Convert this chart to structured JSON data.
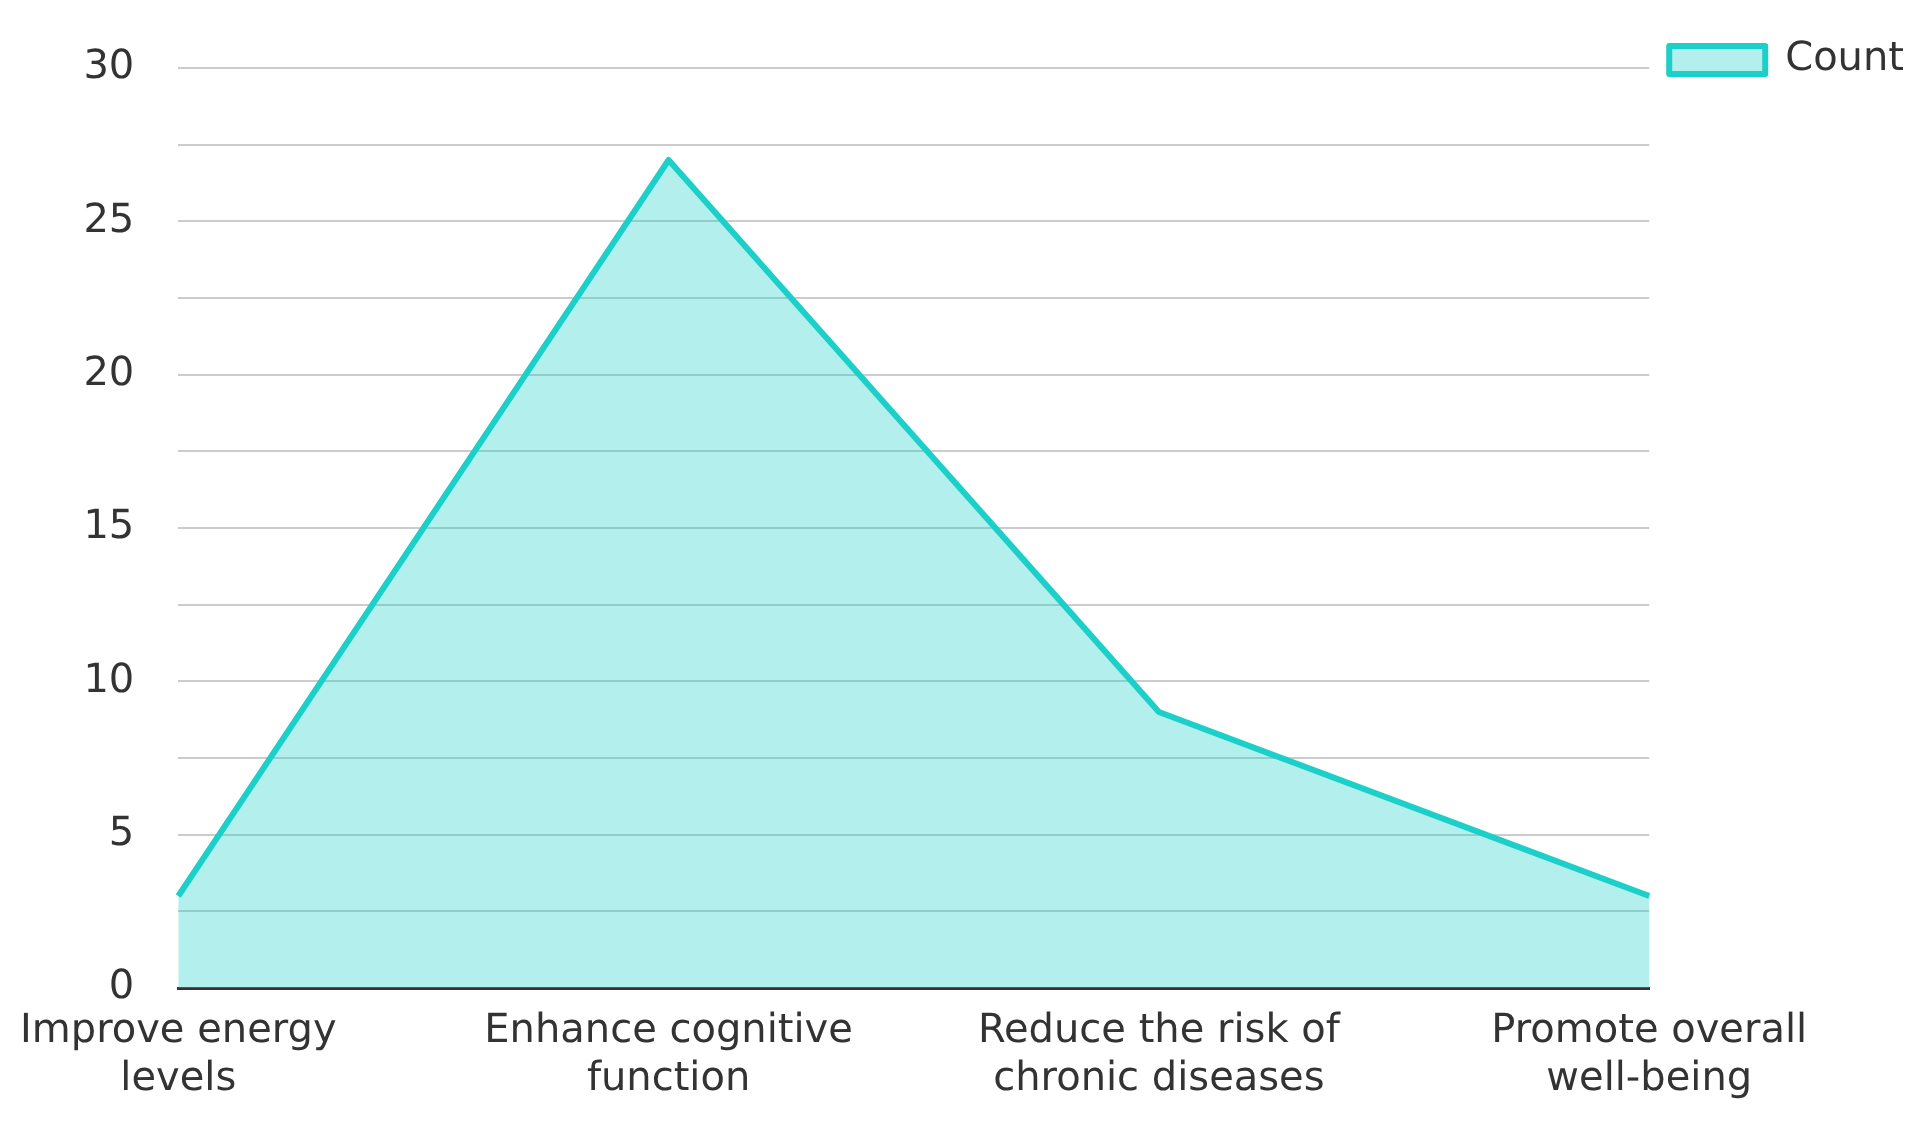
{
  "chart_data": {
    "type": "area",
    "categories": [
      "Improve energy levels",
      "Enhance cognitive function",
      "Reduce the risk of chronic diseases",
      "Promote overall well-being"
    ],
    "series": [
      {
        "name": "Count",
        "color": "#1ccfc9",
        "values": [
          3,
          27,
          9,
          3
        ]
      }
    ],
    "ylim": [
      0,
      30
    ],
    "yticks": [
      0,
      {
        "value": 2.5,
        "label": null
      },
      5,
      {
        "value": 7.5,
        "label": null
      },
      10,
      {
        "value": 12.5,
        "label": null
      },
      15,
      {
        "value": 17.5,
        "label": null
      },
      20,
      {
        "value": 22.5,
        "label": null
      },
      25,
      {
        "value": 27.5,
        "label": null
      },
      30
    ],
    "grid": "y",
    "legend": "top right",
    "marker": "none"
  }
}
